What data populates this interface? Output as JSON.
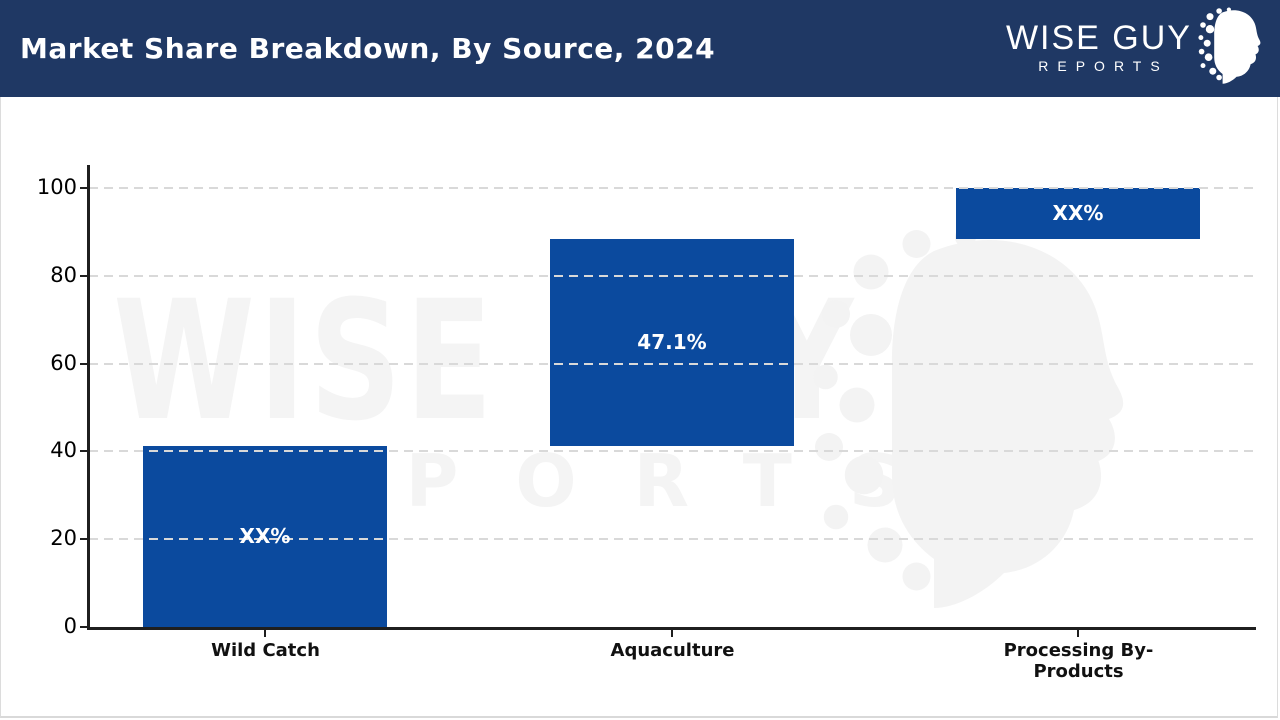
{
  "header": {
    "title": "Market Share Breakdown, By Source, 2024",
    "logo": {
      "line1": "WISE GUY",
      "line2": "REPORTS"
    },
    "background_color": "#1F3864"
  },
  "watermark": {
    "line1": "WISE GUY",
    "line2": "REPORTS"
  },
  "chart_data": {
    "type": "bar",
    "subtype": "waterfall",
    "title": "Market Share Breakdown, By Source, 2024",
    "categories": [
      "Wild Catch",
      "Aquaculture",
      "Processing By-Products"
    ],
    "bars": [
      {
        "category": "Wild Catch",
        "start": 0,
        "end": 41.2,
        "label": "XX%"
      },
      {
        "category": "Aquaculture",
        "start": 41.2,
        "end": 88.3,
        "label": "47.1%"
      },
      {
        "category": "Processing By-Products",
        "start": 88.3,
        "end": 100,
        "label": "XX%"
      }
    ],
    "ylim": [
      0,
      100
    ],
    "yticks": [
      0,
      20,
      40,
      60,
      80,
      100
    ],
    "xlabel": "",
    "ylabel": "",
    "legend": "none",
    "grid": "horizontal-dashed",
    "colors": {
      "bar": "#0B4A9E",
      "bar_label": "#FFFFFF",
      "grid": "#D9D9D9",
      "axis": "#1F1F1F",
      "tick_label": "#000000"
    }
  }
}
